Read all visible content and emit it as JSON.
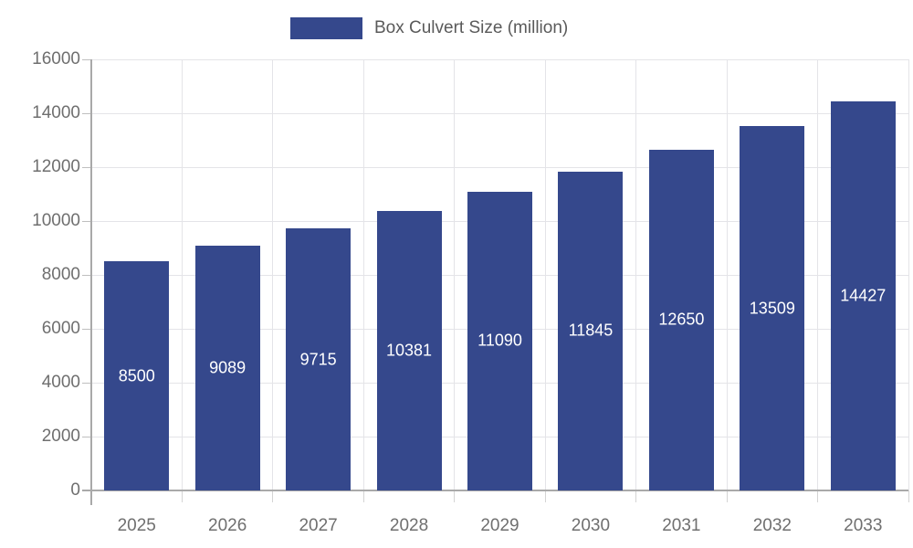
{
  "chart_data": {
    "type": "bar",
    "title": "Box Culvert Size (million)",
    "legend": [
      "Box Culvert Size (million)"
    ],
    "legend_position": "top-center",
    "categories": [
      "2025",
      "2026",
      "2027",
      "2028",
      "2029",
      "2030",
      "2031",
      "2032",
      "2033"
    ],
    "series": [
      {
        "name": "Box Culvert Size (million)",
        "values": [
          8500,
          9089,
          9715,
          10381,
          11090,
          11845,
          12650,
          13509,
          14427
        ]
      }
    ],
    "xlabel": "",
    "ylabel": "",
    "ylim": [
      0,
      16000
    ],
    "ytick_step": 2000,
    "ytick_labels": [
      "0",
      "2000",
      "4000",
      "6000",
      "8000",
      "10000",
      "12000",
      "14000",
      "16000"
    ],
    "grid": true,
    "value_labels_shown": true,
    "colors": {
      "bar": "#35488c",
      "value_label": "#ffffff",
      "gridline": "#e4e4e8",
      "axis": "#a9a9a9",
      "tick": "#d4d4d4",
      "tick_label": "#6f6f6f",
      "legend_text": "#5a5a5a",
      "background": "#ffffff"
    }
  }
}
